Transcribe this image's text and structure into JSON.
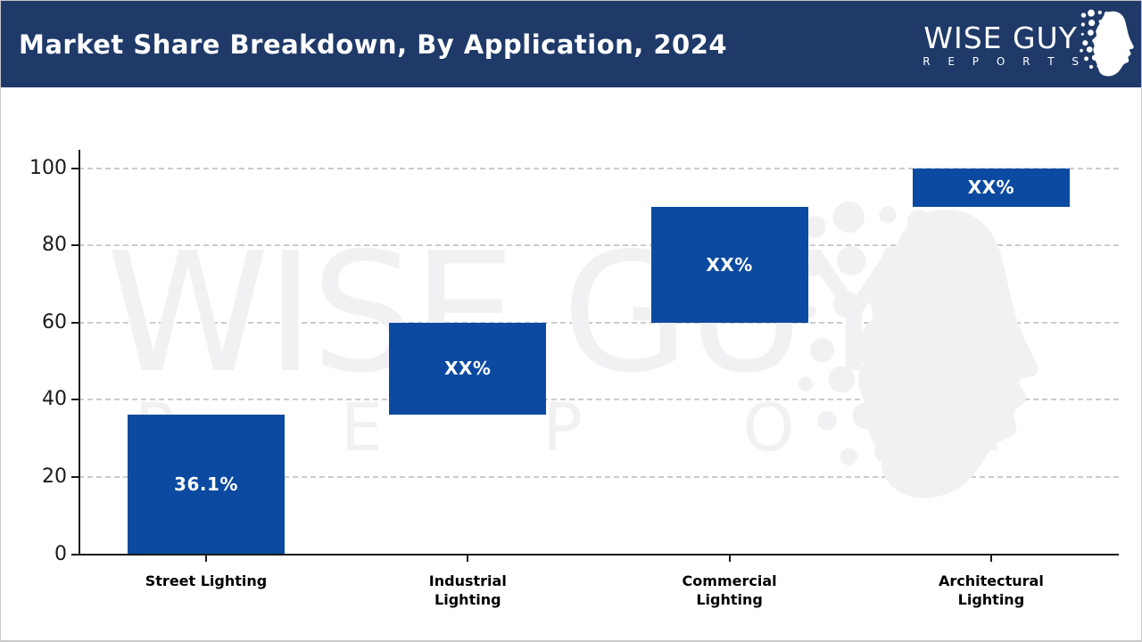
{
  "header": {
    "title": "Market Share Breakdown, By Application, 2024",
    "logo": {
      "name_line": "WISE GUY",
      "reports_line": "R E P O R T S"
    }
  },
  "watermark": {
    "name_line": "WISE GUY",
    "reports_line": "R E P O R T S"
  },
  "chart_data": {
    "type": "bar",
    "subtype": "waterfall",
    "title": "Market Share Breakdown, By Application, 2024",
    "categories": [
      "Street Lighting",
      "Industrial Lighting",
      "Commercial Lighting",
      "Architectural Lighting"
    ],
    "segments": [
      {
        "category": "Street Lighting",
        "category_lines": [
          "Street Lighting"
        ],
        "start": 0,
        "end": 36.1,
        "label": "36.1%"
      },
      {
        "category": "Industrial Lighting",
        "category_lines": [
          "Industrial",
          "Lighting"
        ],
        "start": 36.1,
        "end": 60,
        "label": "XX%"
      },
      {
        "category": "Commercial Lighting",
        "category_lines": [
          "Commercial",
          "Lighting"
        ],
        "start": 60,
        "end": 90,
        "label": "XX%"
      },
      {
        "category": "Architectural Lighting",
        "category_lines": [
          "Architectural",
          "Lighting"
        ],
        "start": 90,
        "end": 100,
        "label": "XX%"
      }
    ],
    "xlabel": "",
    "ylabel": "",
    "ylim": [
      0,
      100
    ],
    "yticks": [
      0,
      20,
      40,
      60,
      80,
      100
    ],
    "grid": "horizontal-dashed",
    "legend": "none",
    "bar_color": "#0b4aa0",
    "bar_label_color": "#ffffff"
  },
  "colors": {
    "header_bg": "#1f3a68",
    "bar": "#0b4aa0",
    "gridline": "#cccccc",
    "axis": "#1a1a1a",
    "watermark": "#f1f1f4",
    "background": "#ffffff"
  }
}
